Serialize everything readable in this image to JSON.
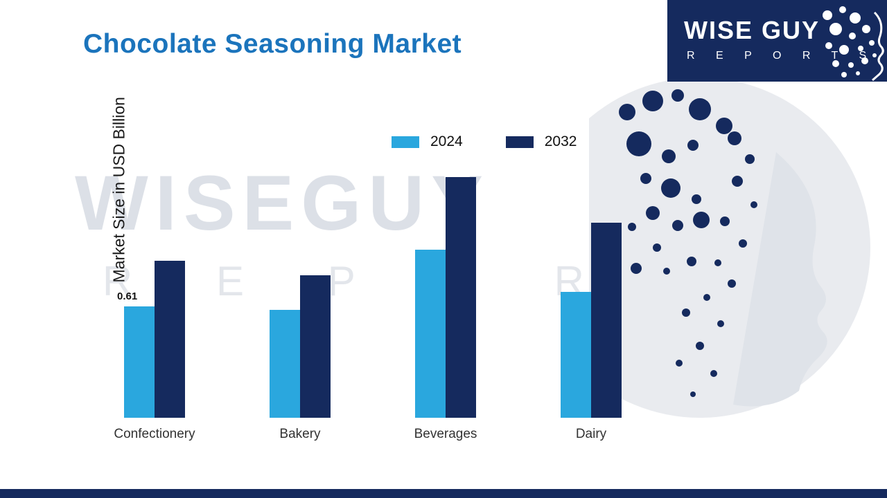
{
  "title": "Chocolate Seasoning Market",
  "y_axis_label": "Market Size in USD Billion",
  "legend": {
    "items": [
      {
        "label": "2024",
        "color": "#2AA7DE"
      },
      {
        "label": "2032",
        "color": "#152A5E"
      }
    ]
  },
  "logo": {
    "line1": "WISE GUY",
    "line2": "R E P O R T S"
  },
  "watermark": {
    "line1": "WISEGUY",
    "line2": "R E P O R T S"
  },
  "icons": {
    "logo_head": "dotted-head-profile-icon",
    "background_head": "dotted-head-watermark"
  },
  "colors": {
    "title": "#1B74BC",
    "bar_2024": "#2AA7DE",
    "bar_2032": "#152A5E",
    "navy_block": "#152A5E",
    "bottom_bar": "#152A5E",
    "watermark_gray": "#DCE0E7",
    "head_circle_gray": "#E9EBEF"
  },
  "chart_data": {
    "type": "bar",
    "title": "Chocolate Seasoning Market",
    "xlabel": "",
    "ylabel": "Market Size in USD Billion",
    "ylim": [
      0,
      1.4
    ],
    "unit": "USD Billion",
    "grid": false,
    "legend_position": "top-center",
    "categories": [
      "Confectionery",
      "Bakery",
      "Beverages",
      "Dairy"
    ],
    "series": [
      {
        "name": "2024",
        "color": "#2AA7DE",
        "values": [
          0.61,
          0.59,
          0.92,
          0.69
        ]
      },
      {
        "name": "2032",
        "color": "#152A5E",
        "values": [
          0.86,
          0.78,
          1.32,
          1.07
        ]
      }
    ],
    "annotation": "0.61",
    "annotation_target": {
      "category": "Confectionery",
      "series": "2024"
    }
  }
}
